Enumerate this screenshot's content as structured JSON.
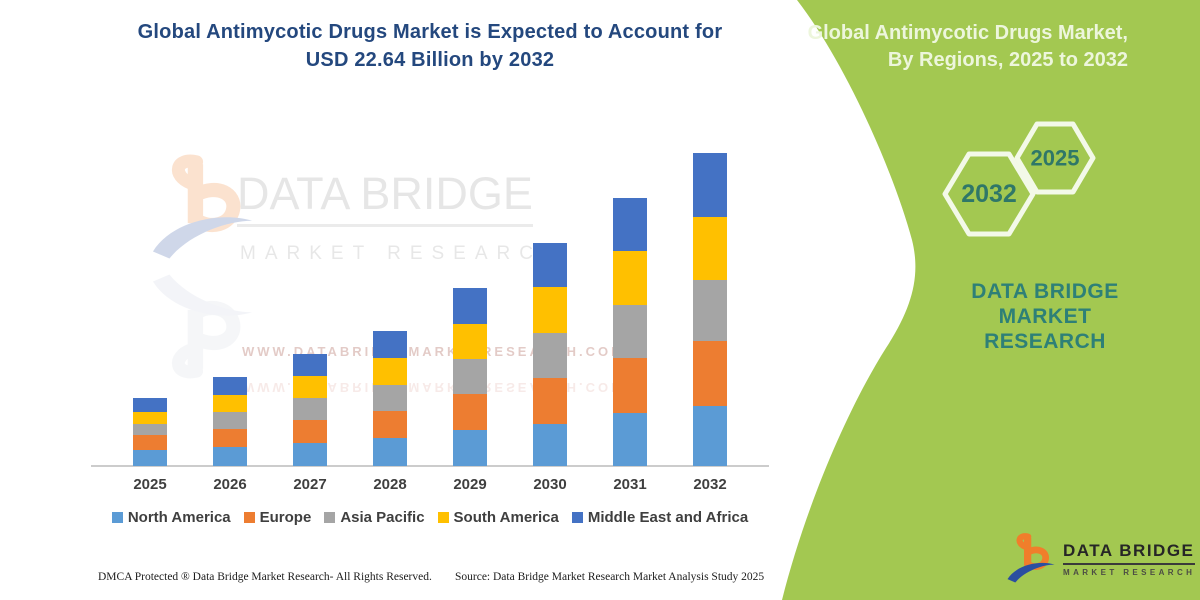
{
  "header": {
    "title_line1": "Global Antimycotic Drugs Market is Expected to Account for",
    "title_line2": "USD 22.64 Billion by 2032",
    "title_color": "#24487E"
  },
  "side_panel": {
    "background_color": "#A3C851",
    "title_line1": "Global Antimycotic Drugs Market,",
    "title_line2": "By Regions, 2025 to 2032",
    "hexagon_back_year": "2032",
    "hexagon_front_year": "2025",
    "hexagon_year_color": "#2F7768",
    "brand_line1": "DATA BRIDGE MARKET",
    "brand_line2": "RESEARCH",
    "brand_color": "#2E8077",
    "logo_name": "DATA BRIDGE",
    "logo_sub": "MARKET RESEARCH",
    "logo_orange": "#F07E2B",
    "logo_blue": "#2B4FA0"
  },
  "watermark": {
    "brand": "DATA BRIDGE",
    "sub": "MARKET RESEARCH",
    "url": "WWW.DATABRIDGEMARKETRESEARCH.COM"
  },
  "footer": {
    "left": "DMCA Protected ® Data Bridge Market Research-  All Rights Reserved.",
    "right": "Source: Data Bridge Market Research  Market Analysis Study 2025"
  },
  "chart_data": {
    "type": "bar",
    "stacked": true,
    "unit": "USD Billion",
    "title": "Global Antimycotic Drugs Market, By Regions, 2025 to 2032",
    "categories": [
      "2025",
      "2026",
      "2027",
      "2028",
      "2029",
      "2030",
      "2031",
      "2032"
    ],
    "series": [
      {
        "name": "North America",
        "color": "#5B9BD5",
        "values": [
          1.16,
          1.4,
          1.7,
          2.0,
          2.6,
          3.07,
          3.85,
          4.36
        ]
      },
      {
        "name": "Europe",
        "color": "#ED7D31",
        "values": [
          1.07,
          1.3,
          1.65,
          1.98,
          2.62,
          3.3,
          3.95,
          4.67
        ]
      },
      {
        "name": "Asia Pacific",
        "color": "#A5A5A5",
        "values": [
          0.79,
          1.18,
          1.55,
          1.9,
          2.53,
          3.25,
          3.85,
          4.45
        ]
      },
      {
        "name": "South America",
        "color": "#FFC000",
        "values": [
          0.88,
          1.24,
          1.58,
          1.92,
          2.55,
          3.32,
          3.88,
          4.55
        ]
      },
      {
        "name": "Middle East and Africa",
        "color": "#4472C4",
        "values": [
          1.02,
          1.32,
          1.62,
          1.96,
          2.57,
          3.19,
          3.85,
          4.61
        ]
      }
    ],
    "totals": [
      4.92,
      6.44,
      8.1,
      9.76,
      12.87,
      16.13,
      19.38,
      22.64
    ],
    "highlight_total_2032": 22.64,
    "xlabel": "",
    "ylabel": "",
    "y_axis_visible": false,
    "grid": false,
    "legend_position": "bottom"
  }
}
